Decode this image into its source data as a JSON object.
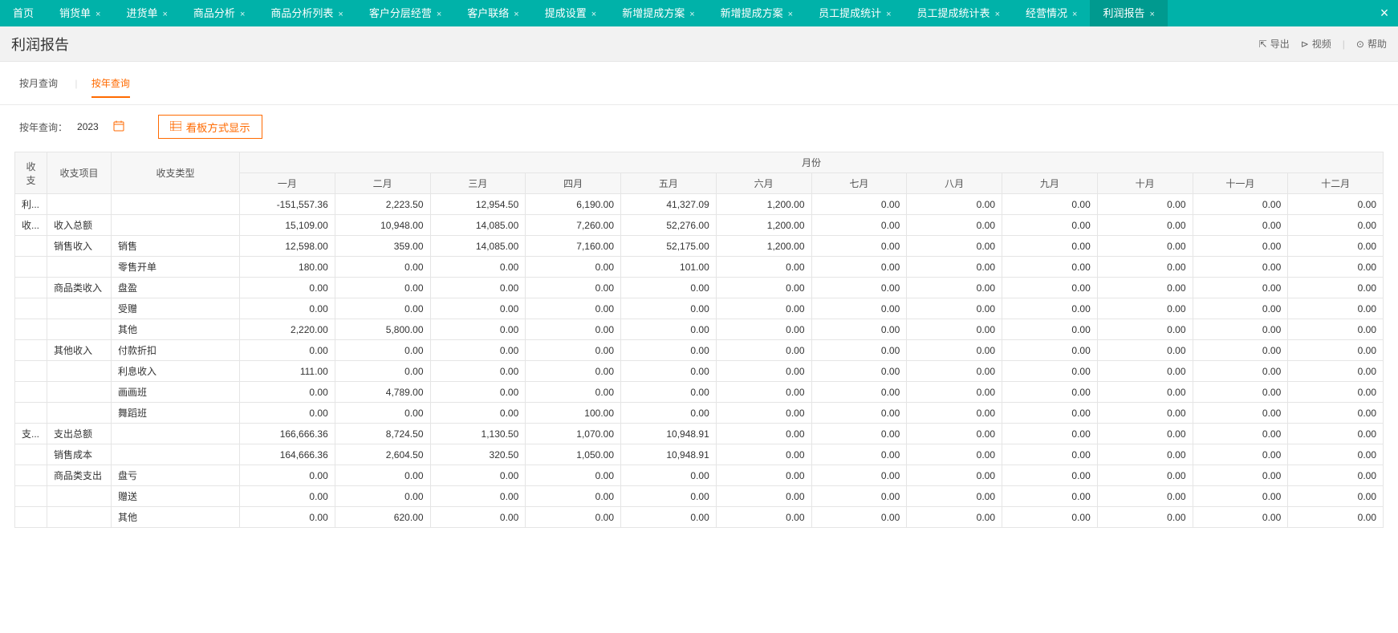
{
  "theme": {
    "primary": "#00b2a9",
    "primary_dark": "#009a8f",
    "accent": "#ff6a00",
    "border": "#e5e5e5",
    "header_bg": "#f7f7f7"
  },
  "tabs": [
    {
      "label": "首页",
      "closable": false
    },
    {
      "label": "销货单",
      "closable": true
    },
    {
      "label": "进货单",
      "closable": true
    },
    {
      "label": "商品分析",
      "closable": true
    },
    {
      "label": "商品分析列表",
      "closable": true
    },
    {
      "label": "客户分层经营",
      "closable": true
    },
    {
      "label": "客户联络",
      "closable": true
    },
    {
      "label": "提成设置",
      "closable": true
    },
    {
      "label": "新增提成方案",
      "closable": true
    },
    {
      "label": "新增提成方案",
      "closable": true
    },
    {
      "label": "员工提成统计",
      "closable": true
    },
    {
      "label": "员工提成统计表",
      "closable": true
    },
    {
      "label": "经营情况",
      "closable": true
    },
    {
      "label": "利润报告",
      "closable": true,
      "active": true
    }
  ],
  "page_title": "利润报告",
  "actions": {
    "export": "导出",
    "video": "视频",
    "help": "帮助"
  },
  "subtabs": {
    "monthly": "按月查询",
    "yearly": "按年查询",
    "active": "yearly"
  },
  "filter": {
    "label": "按年查询：",
    "year": "2023",
    "kanban_btn": "看板方式显示"
  },
  "table": {
    "head": {
      "col1": "收支",
      "col2": "收支项目",
      "col3": "收支类型",
      "months_label": "月份",
      "months": [
        "一月",
        "二月",
        "三月",
        "四月",
        "五月",
        "六月",
        "七月",
        "八月",
        "九月",
        "十月",
        "十一月",
        "十二月"
      ]
    },
    "rows": [
      {
        "c1": "利...",
        "c2": "",
        "c3": "",
        "v": [
          "-151,557.36",
          "2,223.50",
          "12,954.50",
          "6,190.00",
          "41,327.09",
          "1,200.00",
          "0.00",
          "0.00",
          "0.00",
          "0.00",
          "0.00",
          "0.00"
        ]
      },
      {
        "c1": "收...",
        "c2": "收入总额",
        "c3": "",
        "v": [
          "15,109.00",
          "10,948.00",
          "14,085.00",
          "7,260.00",
          "52,276.00",
          "1,200.00",
          "0.00",
          "0.00",
          "0.00",
          "0.00",
          "0.00",
          "0.00"
        ]
      },
      {
        "c1": "",
        "c2": "销售收入",
        "c3": "销售",
        "v": [
          "12,598.00",
          "359.00",
          "14,085.00",
          "7,160.00",
          "52,175.00",
          "1,200.00",
          "0.00",
          "0.00",
          "0.00",
          "0.00",
          "0.00",
          "0.00"
        ]
      },
      {
        "c1": "",
        "c2": "",
        "c3": "零售开单",
        "v": [
          "180.00",
          "0.00",
          "0.00",
          "0.00",
          "101.00",
          "0.00",
          "0.00",
          "0.00",
          "0.00",
          "0.00",
          "0.00",
          "0.00"
        ]
      },
      {
        "c1": "",
        "c2": "商品类收入",
        "c3": "盘盈",
        "v": [
          "0.00",
          "0.00",
          "0.00",
          "0.00",
          "0.00",
          "0.00",
          "0.00",
          "0.00",
          "0.00",
          "0.00",
          "0.00",
          "0.00"
        ]
      },
      {
        "c1": "",
        "c2": "",
        "c3": "受赠",
        "v": [
          "0.00",
          "0.00",
          "0.00",
          "0.00",
          "0.00",
          "0.00",
          "0.00",
          "0.00",
          "0.00",
          "0.00",
          "0.00",
          "0.00"
        ]
      },
      {
        "c1": "",
        "c2": "",
        "c3": "其他",
        "v": [
          "2,220.00",
          "5,800.00",
          "0.00",
          "0.00",
          "0.00",
          "0.00",
          "0.00",
          "0.00",
          "0.00",
          "0.00",
          "0.00",
          "0.00"
        ]
      },
      {
        "c1": "",
        "c2": "其他收入",
        "c3": "付款折扣",
        "v": [
          "0.00",
          "0.00",
          "0.00",
          "0.00",
          "0.00",
          "0.00",
          "0.00",
          "0.00",
          "0.00",
          "0.00",
          "0.00",
          "0.00"
        ]
      },
      {
        "c1": "",
        "c2": "",
        "c3": "利息收入",
        "v": [
          "111.00",
          "0.00",
          "0.00",
          "0.00",
          "0.00",
          "0.00",
          "0.00",
          "0.00",
          "0.00",
          "0.00",
          "0.00",
          "0.00"
        ]
      },
      {
        "c1": "",
        "c2": "",
        "c3": "画画班",
        "v": [
          "0.00",
          "4,789.00",
          "0.00",
          "0.00",
          "0.00",
          "0.00",
          "0.00",
          "0.00",
          "0.00",
          "0.00",
          "0.00",
          "0.00"
        ]
      },
      {
        "c1": "",
        "c2": "",
        "c3": "舞蹈班",
        "v": [
          "0.00",
          "0.00",
          "0.00",
          "100.00",
          "0.00",
          "0.00",
          "0.00",
          "0.00",
          "0.00",
          "0.00",
          "0.00",
          "0.00"
        ]
      },
      {
        "c1": "支...",
        "c2": "支出总额",
        "c3": "",
        "v": [
          "166,666.36",
          "8,724.50",
          "1,130.50",
          "1,070.00",
          "10,948.91",
          "0.00",
          "0.00",
          "0.00",
          "0.00",
          "0.00",
          "0.00",
          "0.00"
        ]
      },
      {
        "c1": "",
        "c2": "销售成本",
        "c3": "",
        "v": [
          "164,666.36",
          "2,604.50",
          "320.50",
          "1,050.00",
          "10,948.91",
          "0.00",
          "0.00",
          "0.00",
          "0.00",
          "0.00",
          "0.00",
          "0.00"
        ]
      },
      {
        "c1": "",
        "c2": "商品类支出",
        "c3": "盘亏",
        "v": [
          "0.00",
          "0.00",
          "0.00",
          "0.00",
          "0.00",
          "0.00",
          "0.00",
          "0.00",
          "0.00",
          "0.00",
          "0.00",
          "0.00"
        ]
      },
      {
        "c1": "",
        "c2": "",
        "c3": "赠送",
        "v": [
          "0.00",
          "0.00",
          "0.00",
          "0.00",
          "0.00",
          "0.00",
          "0.00",
          "0.00",
          "0.00",
          "0.00",
          "0.00",
          "0.00"
        ]
      },
      {
        "c1": "",
        "c2": "",
        "c3": "其他",
        "v": [
          "0.00",
          "620.00",
          "0.00",
          "0.00",
          "0.00",
          "0.00",
          "0.00",
          "0.00",
          "0.00",
          "0.00",
          "0.00",
          "0.00"
        ]
      }
    ]
  }
}
